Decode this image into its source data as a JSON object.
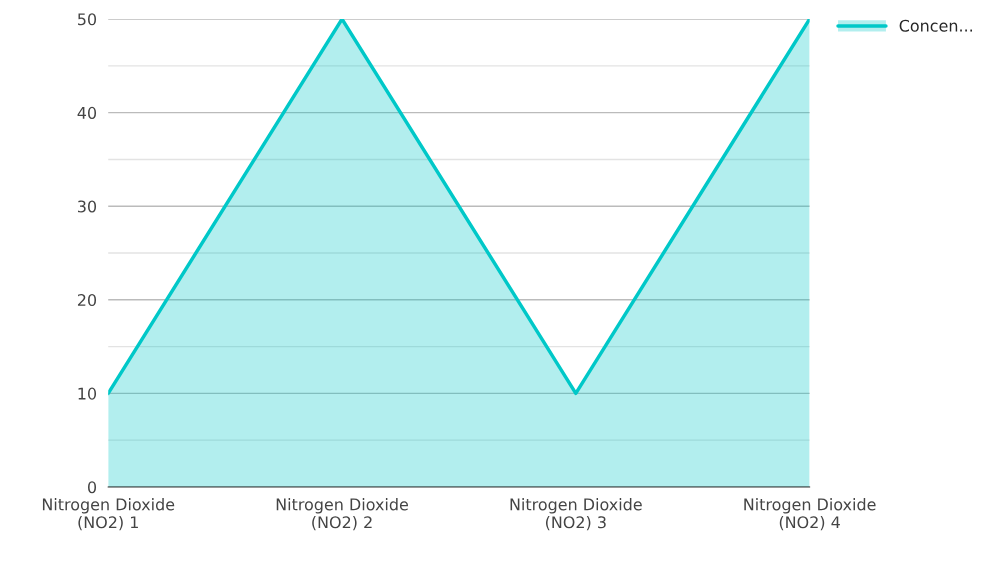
{
  "chart_data": {
    "type": "area",
    "categories": [
      "Nitrogen Dioxide\n(NO2) 1",
      "Nitrogen Dioxide\n(NO2) 2",
      "Nitrogen Dioxide\n(NO2) 3",
      "Nitrogen Dioxide\n(NO2) 4"
    ],
    "series": [
      {
        "name": "Concen...",
        "color": "#00c8c8",
        "values": [
          10,
          50,
          10,
          50
        ]
      }
    ],
    "ylim": [
      0,
      50
    ],
    "yticks": [
      0,
      {
        "value": 5,
        "label": null
      },
      10,
      {
        "value": 15,
        "label": null
      },
      20,
      {
        "value": 25,
        "label": null
      },
      30,
      {
        "value": 35,
        "label": null
      },
      40,
      {
        "value": 45,
        "label": null
      },
      50
    ],
    "grid": "y",
    "legend": "top right",
    "marker": "none",
    "line_style": "solid"
  }
}
